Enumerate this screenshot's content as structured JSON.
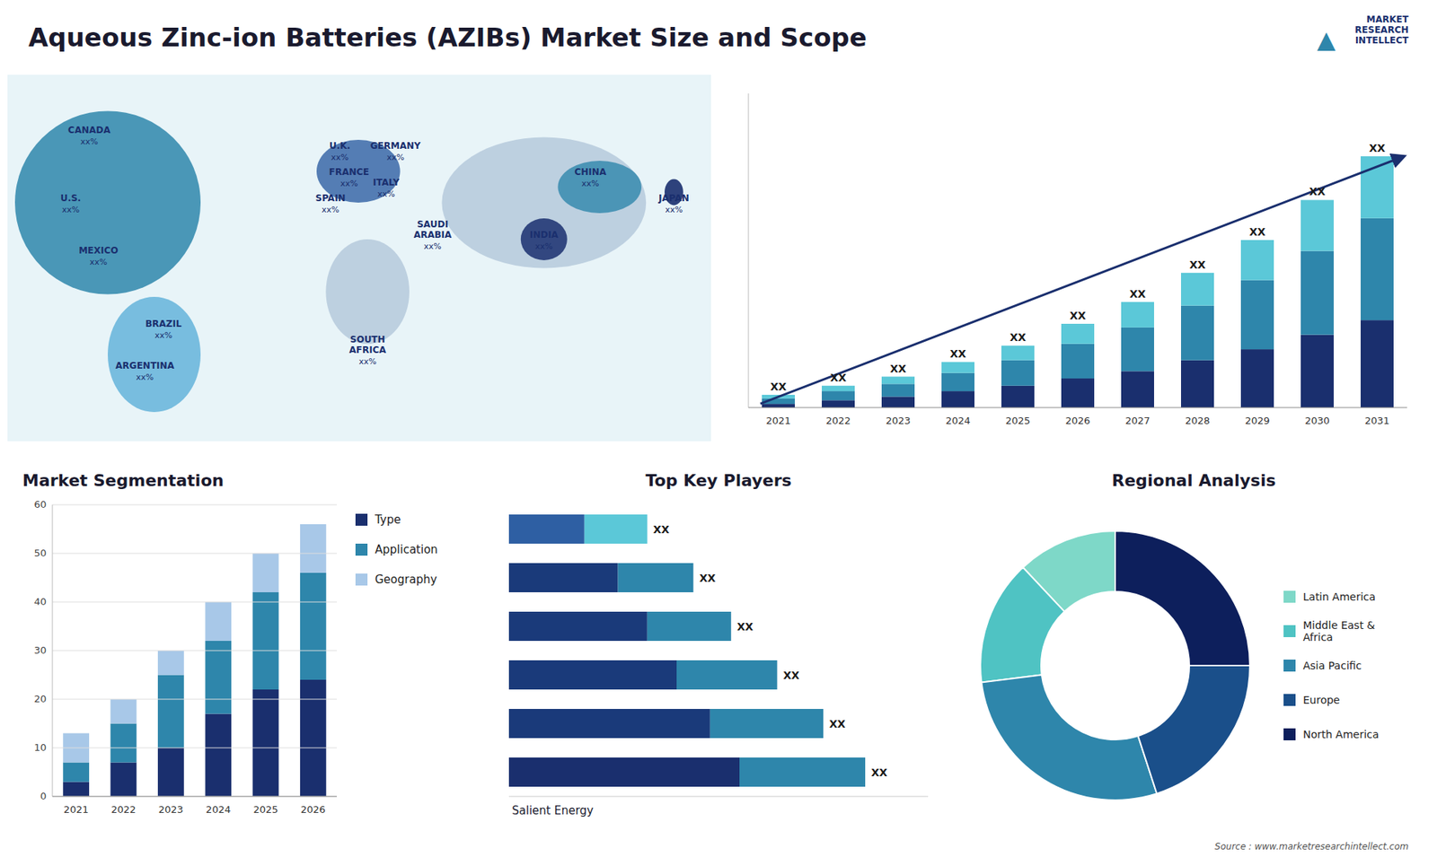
{
  "title": "Aqueous Zinc-ion Batteries (AZIBs) Market Size and Scope",
  "source": "Source : www.marketresearchintellect.com",
  "logo": "MARKET\nRESEARCH\nINTELLECT",
  "logo_mark": "▲",
  "chart_data": [
    {
      "type": "map",
      "categories": [
        "CANADA",
        "U.S.",
        "MEXICO",
        "BRAZIL",
        "ARGENTINA",
        "U.K.",
        "FRANCE",
        "SPAIN",
        "GERMANY",
        "ITALY",
        "SAUDI\nARABIA",
        "SOUTH\nAFRICA",
        "CHINA",
        "INDIA",
        "JAPAN"
      ],
      "value_labels": [
        "xx%",
        "xx%",
        "xx%",
        "xx%",
        "xx%",
        "xx%",
        "xx%",
        "xx%",
        "xx%",
        "xx%",
        "xx%",
        "xx%",
        "xx%",
        "xx%",
        "xx%"
      ]
    },
    {
      "type": "bar",
      "stacked": true,
      "categories": [
        "2021",
        "2022",
        "2023",
        "2024",
        "2025",
        "2026",
        "2027",
        "2028",
        "2029",
        "2030",
        "2031"
      ],
      "series": [
        {
          "color": "#1a2f6e",
          "values": [
            1,
            2,
            3,
            4.5,
            6,
            8,
            10,
            13,
            16,
            20,
            24
          ]
        },
        {
          "color": "#2e86ab",
          "values": [
            1.5,
            2.5,
            3.5,
            5,
            7,
            9.5,
            12,
            15,
            19,
            23,
            28
          ]
        },
        {
          "color": "#5bc8d8",
          "values": [
            1,
            1.5,
            2,
            3,
            4,
            5.5,
            7,
            9,
            11,
            14,
            17
          ]
        }
      ],
      "annotations": [
        "XX",
        "XX",
        "XX",
        "XX",
        "XX",
        "XX",
        "XX",
        "XX",
        "XX",
        "XX",
        "XX"
      ],
      "ylim": [
        0,
        86.25
      ],
      "tick_labels": "x"
    },
    {
      "type": "bar",
      "stacked": true,
      "title": "Market Segmentation",
      "categories": [
        "2021",
        "2022",
        "2023",
        "2024",
        "2025",
        "2026"
      ],
      "series": [
        {
          "name": "Type",
          "color": "#1a2f6e",
          "values": [
            3,
            7,
            10,
            17,
            22,
            24
          ]
        },
        {
          "name": "Application",
          "color": "#2e86ab",
          "values": [
            4,
            8,
            15,
            15,
            20,
            22
          ]
        },
        {
          "name": "Geography",
          "color": "#a8c8e8",
          "values": [
            6,
            5,
            5,
            8,
            8,
            10
          ]
        }
      ],
      "ylim": [
        0,
        60
      ],
      "yticks": [
        0,
        10,
        20,
        30,
        40,
        50,
        60
      ],
      "grid": true,
      "legend": "right"
    },
    {
      "type": "bar",
      "orientation": "horizontal",
      "stacked": true,
      "title": "Top Key Players",
      "subtitle": "Salient Energy",
      "categories": [
        null,
        null,
        null,
        null,
        null,
        null
      ],
      "series": [
        {
          "colors": [
            "#1a2f6e",
            "#1a3a7a",
            "#1a3a7a",
            "#1a3a7a",
            "#1a3a7a",
            "#2e5fa3"
          ],
          "values": [
            0.55,
            0.48,
            0.4,
            0.33,
            0.26,
            0.18
          ]
        },
        {
          "colors": [
            "#2e86ab",
            "#2e86ab",
            "#2e86ab",
            "#2e86ab",
            "#2e86ab",
            "#5bc8d8"
          ],
          "values": [
            0.3,
            0.27,
            0.24,
            0.2,
            0.18,
            0.15
          ]
        }
      ],
      "annotations": [
        "XX",
        "XX",
        "XX",
        "XX",
        "XX",
        "XX"
      ],
      "xlim": [
        0,
        1.0
      ],
      "tick_labels": false
    },
    {
      "type": "donut",
      "title": "Regional Analysis",
      "categories": [
        "Latin America",
        "Middle East &\nAfrica",
        "Asia Pacific",
        "Europe",
        "North America"
      ],
      "values": [
        12,
        15,
        28,
        20,
        25
      ],
      "colors": [
        "#7ed8c8",
        "#4fc3c3",
        "#2e86ab",
        "#1a4f8a",
        "#0d1f5c"
      ],
      "legend": "right"
    }
  ]
}
